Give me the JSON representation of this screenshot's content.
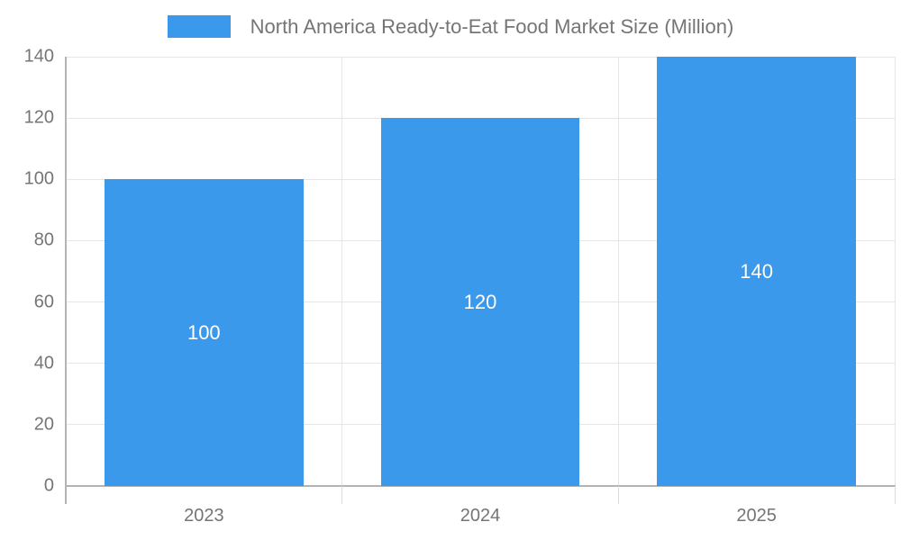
{
  "chart_data": {
    "type": "bar",
    "title": "North America Ready-to-Eat Food Market Size (Million)",
    "legend": [
      "North America Ready-to-Eat Food Market Size (Million)"
    ],
    "legend_position": "top",
    "categories": [
      "2023",
      "2024",
      "2025"
    ],
    "series": [
      {
        "name": "North America Ready-to-Eat Food Market Size (Million)",
        "values": [
          100,
          120,
          140
        ]
      }
    ],
    "data_labels": [
      "100",
      "120",
      "140"
    ],
    "xlabel": "",
    "ylabel": "",
    "ylim": [
      0,
      140
    ],
    "yticks": [
      0,
      20,
      40,
      60,
      80,
      100,
      120,
      140
    ],
    "grid": true,
    "colors": {
      "bar": "#3B99EC",
      "bar_label_text": "#FFFFFF",
      "axis_text": "#757575",
      "title_text": "#757575",
      "gridline": "#E6E6E6",
      "axis_line": "#B3B3B3",
      "tick_line": "#DCDCDC",
      "background": "#FFFFFF"
    }
  }
}
